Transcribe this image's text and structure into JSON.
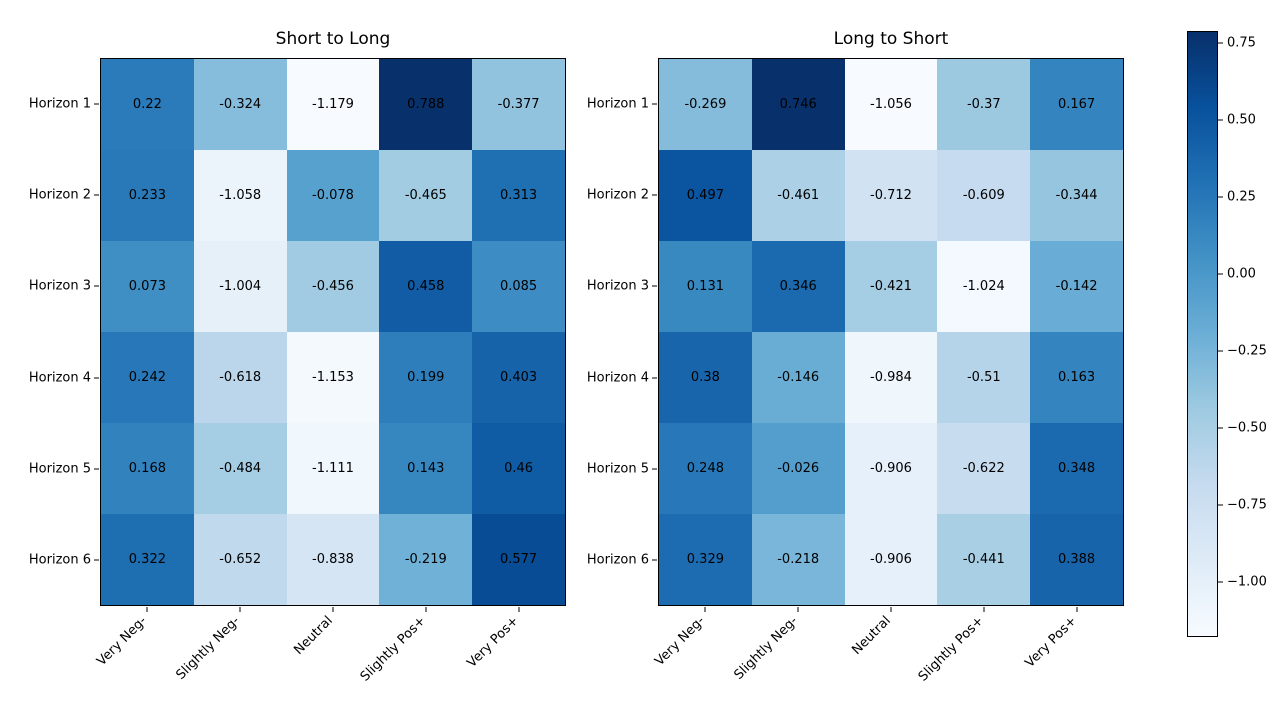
{
  "chart_data": {
    "type": "heatmap",
    "colormap": "Blues",
    "colormap_stops": [
      "#f7fbff",
      "#deebf7",
      "#c6dbef",
      "#9ecae1",
      "#6baed6",
      "#4292c6",
      "#2171b5",
      "#08519c",
      "#08306b"
    ],
    "x_labels": [
      "Very Neg-",
      "Slightly Neg-",
      "Neutral",
      "Slightly Pos+",
      "Very Pos+"
    ],
    "y_labels": [
      "Horizon 1",
      "Horizon 2",
      "Horizon 3",
      "Horizon 4",
      "Horizon 5",
      "Horizon 6"
    ],
    "panels": [
      {
        "title": "Short to Long",
        "values": [
          [
            0.22,
            -0.324,
            -1.179,
            0.788,
            -0.377
          ],
          [
            0.233,
            -1.058,
            -0.078,
            -0.465,
            0.313
          ],
          [
            0.073,
            -1.004,
            -0.456,
            0.458,
            0.085
          ],
          [
            0.242,
            -0.618,
            -1.153,
            0.199,
            0.403
          ],
          [
            0.168,
            -0.484,
            -1.111,
            0.143,
            0.46
          ],
          [
            0.322,
            -0.652,
            -0.838,
            -0.219,
            0.577
          ]
        ]
      },
      {
        "title": "Long to Short",
        "values": [
          [
            -0.269,
            0.746,
            -1.056,
            -0.37,
            0.167
          ],
          [
            0.497,
            -0.461,
            -0.712,
            -0.609,
            -0.344
          ],
          [
            0.131,
            0.346,
            -0.421,
            -1.024,
            -0.142
          ],
          [
            0.38,
            -0.146,
            -0.984,
            -0.51,
            0.163
          ],
          [
            0.248,
            -0.026,
            -0.906,
            -0.622,
            0.348
          ],
          [
            0.329,
            -0.218,
            -0.906,
            -0.441,
            0.388
          ]
        ]
      }
    ],
    "colorbar": {
      "tick_labels": [
        "0.75",
        "0.50",
        "0.25",
        "0.00",
        "−0.25",
        "−0.50",
        "−0.75",
        "−1.00"
      ],
      "tick_values": [
        0.75,
        0.5,
        0.25,
        0.0,
        -0.25,
        -0.5,
        -0.75,
        -1.0
      ]
    },
    "layout": {
      "grid": "off",
      "annotations": "on",
      "colorbar_position": "right",
      "x_tick_rotation": 45
    }
  }
}
